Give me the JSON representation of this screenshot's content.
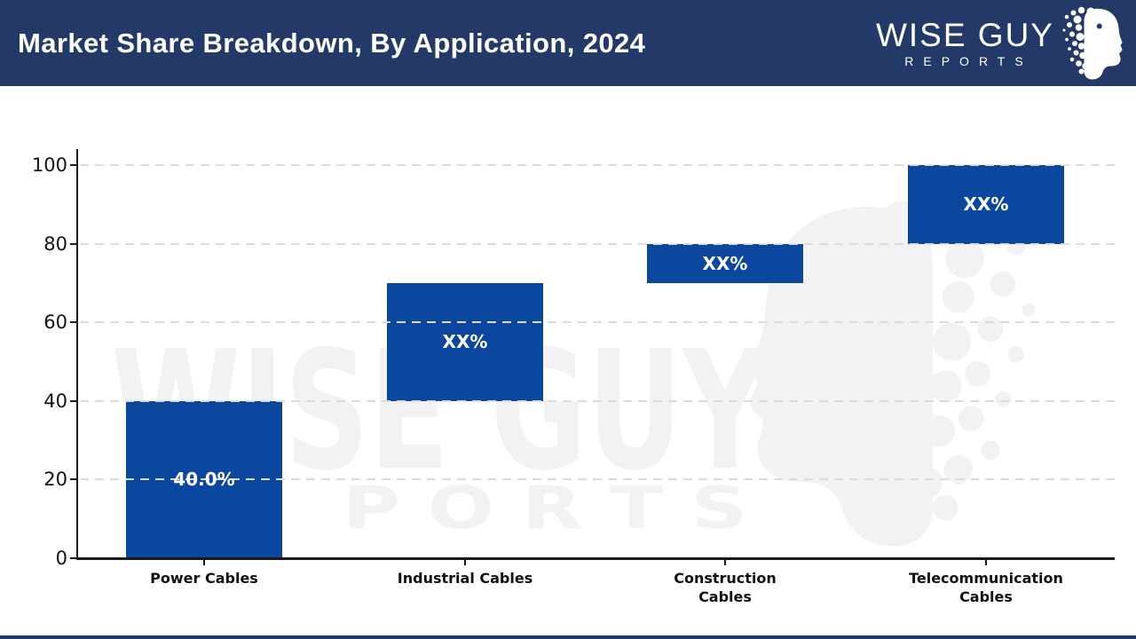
{
  "header": {
    "title": "Market Share Breakdown, By Application, 2024",
    "logo": {
      "line1": "WISE GUY",
      "line2": "REPORTS"
    }
  },
  "watermark": {
    "line1": "WISE GUY",
    "line2": "P O R T S"
  },
  "chart_data": {
    "type": "bar",
    "subtype": "waterfall",
    "title": "Market Share Breakdown, By Application, 2024",
    "categories": [
      "Power Cables",
      "Industrial Cables",
      "Construction Cables",
      "Telecommunication Cables"
    ],
    "tick_label_lines": [
      [
        "Power Cables"
      ],
      [
        "Industrial Cables"
      ],
      [
        "Construction",
        "Cables"
      ],
      [
        "Telecommunication",
        "Cables"
      ]
    ],
    "bars": [
      {
        "category": "Power Cables",
        "start": 0,
        "end": 40,
        "label": "40.0%"
      },
      {
        "category": "Industrial Cables",
        "start": 40,
        "end": 70,
        "label": "XX%"
      },
      {
        "category": "Construction Cables",
        "start": 70,
        "end": 80,
        "label": "XX%"
      },
      {
        "category": "Telecommunication Cables",
        "start": 80,
        "end": 100,
        "label": "XX%"
      }
    ],
    "ylim": [
      0,
      100
    ],
    "yticks": [
      0,
      20,
      40,
      60,
      80,
      100
    ],
    "xlabel": "",
    "ylabel": "",
    "grid": "horizontal-dashed",
    "legend": "none"
  },
  "colors": {
    "header_bg": "#233a68",
    "bar": "#0b479f",
    "bar_label": "#ffffff",
    "grid": "#dcdcdc",
    "axis": "#1a1a1a",
    "watermark": "#f2f2f4"
  }
}
